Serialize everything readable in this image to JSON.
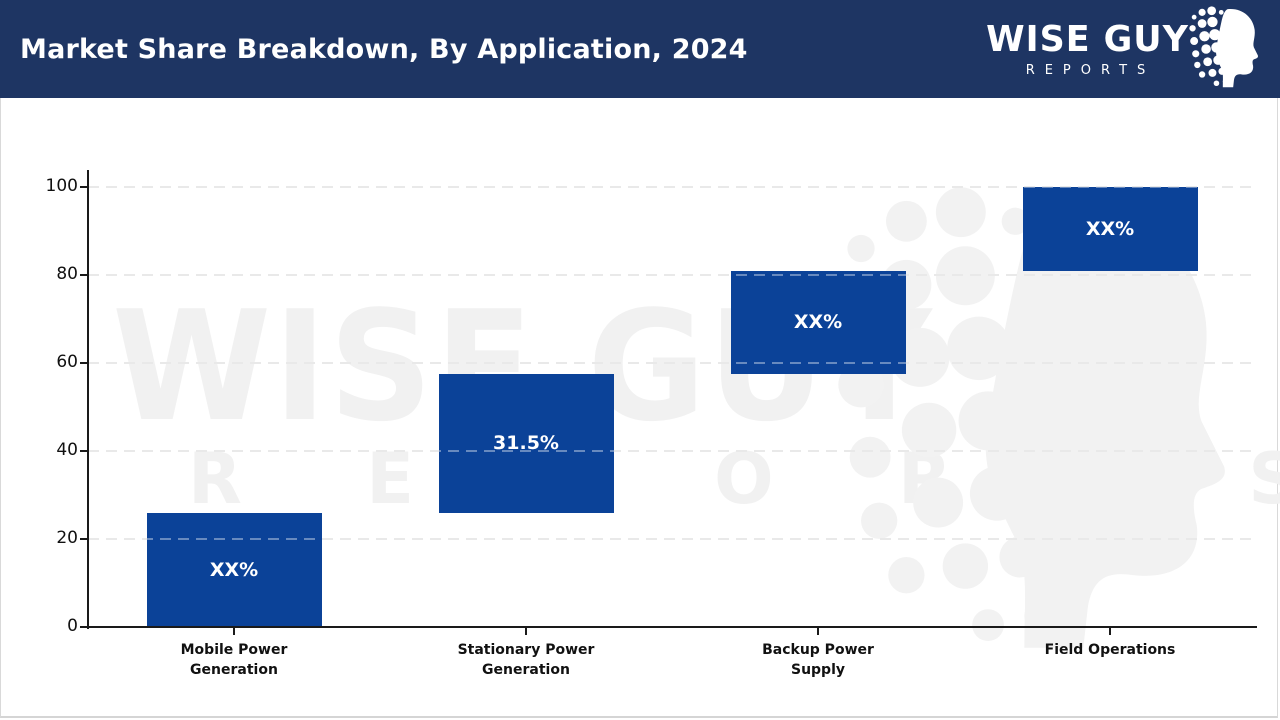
{
  "header": {
    "title": "Market Share Breakdown, By Application, 2024",
    "logo": {
      "line1": "WISE GUY",
      "line2": "REPORTS"
    },
    "background_color": "#1e3563"
  },
  "watermark": {
    "line1": "WISE GUY",
    "line2": "R E P O R T S"
  },
  "chart_data": {
    "type": "bar",
    "subtype": "waterfall (floating stacked segments)",
    "title": "Market Share Breakdown, By Application, 2024",
    "categories": [
      {
        "lines": [
          "Mobile Power",
          "Generation"
        ]
      },
      {
        "lines": [
          "Stationary Power",
          "Generation"
        ]
      },
      {
        "lines": [
          "Backup Power",
          "Supply"
        ]
      },
      {
        "lines": [
          "Field Operations"
        ]
      }
    ],
    "segments": [
      {
        "label": "XX%",
        "start": 0,
        "end": 26,
        "value_estimate": 26
      },
      {
        "label": "31.5%",
        "start": 26,
        "end": 57.5,
        "value_estimate": 31.5
      },
      {
        "label": "XX%",
        "start": 57.5,
        "end": 81,
        "value_estimate": 23.5
      },
      {
        "label": "XX%",
        "start": 81,
        "end": 100,
        "value_estimate": 19
      }
    ],
    "xlabel": "",
    "ylabel": "",
    "ylim": [
      0,
      100
    ],
    "yticks": [
      0,
      20,
      40,
      60,
      80,
      100
    ],
    "grid": "horizontal dashed",
    "grid_color": "#dcdcdc",
    "bar_color": "#0b4298",
    "label_color": "#ffffff",
    "legend": "none"
  }
}
